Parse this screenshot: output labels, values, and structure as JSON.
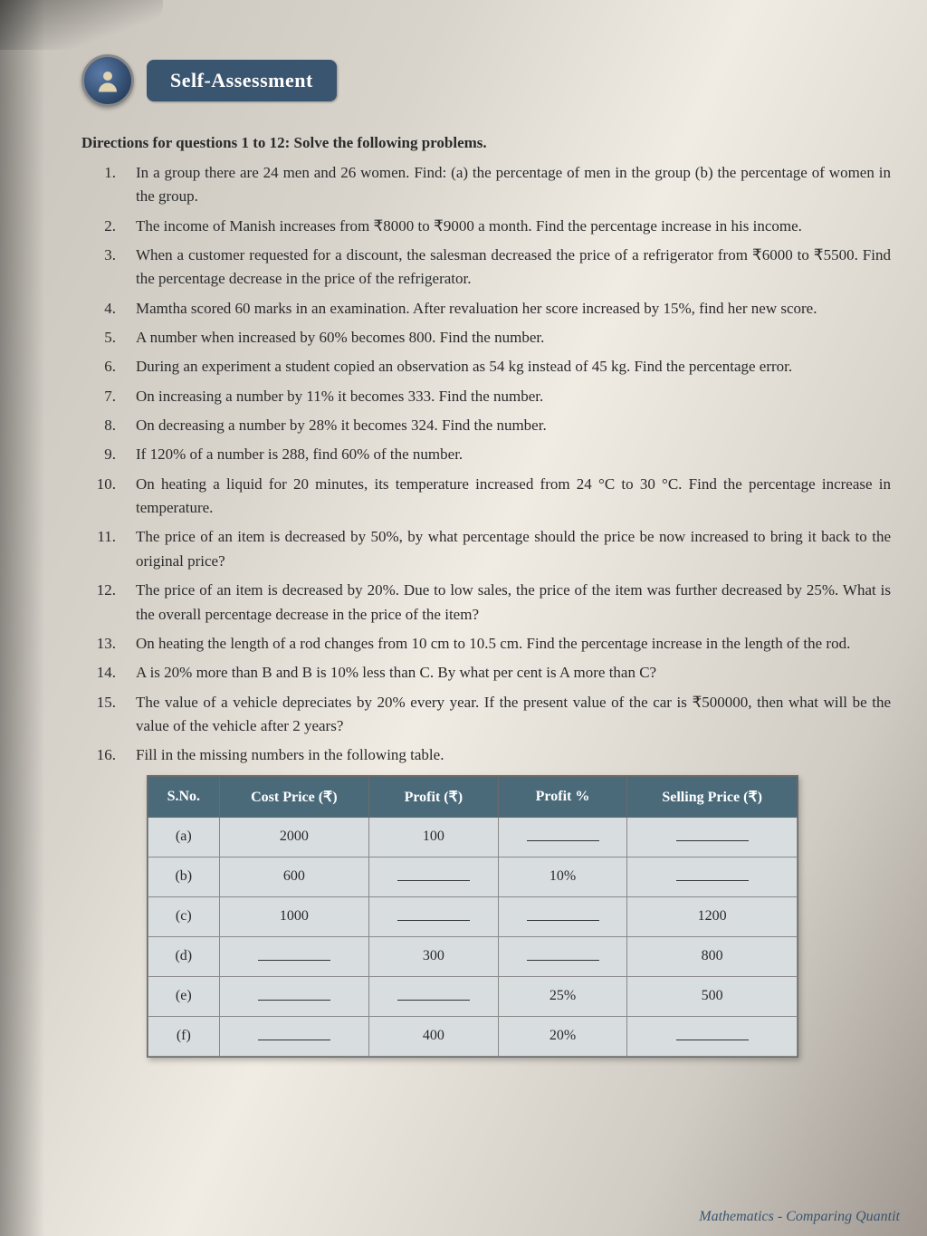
{
  "header": {
    "title": "Self-Assessment"
  },
  "directions": "Directions for questions 1 to 12: Solve the following problems.",
  "questions": [
    {
      "n": "1.",
      "t": "In a group there are 24 men and 26 women. Find: (a) the percentage of men in the group (b) the percentage of women in the group."
    },
    {
      "n": "2.",
      "t": "The income of Manish increases from ₹8000 to ₹9000 a month. Find the percentage increase in his income."
    },
    {
      "n": "3.",
      "t": "When a customer requested for a discount, the salesman decreased the price of a refrigerator from ₹6000 to ₹5500. Find the percentage decrease in the price of the refrigerator."
    },
    {
      "n": "4.",
      "t": "Mamtha scored 60 marks in an examination. After revaluation her score increased by 15%, find her new score."
    },
    {
      "n": "5.",
      "t": "A number when increased by 60% becomes 800. Find the number."
    },
    {
      "n": "6.",
      "t": "During an experiment a student copied an observation as 54 kg instead of 45 kg. Find the percentage error."
    },
    {
      "n": "7.",
      "t": "On increasing a number by 11% it becomes 333. Find the number."
    },
    {
      "n": "8.",
      "t": "On decreasing a number by 28% it becomes 324. Find the number."
    },
    {
      "n": "9.",
      "t": "If 120% of a number is 288, find 60% of the number."
    },
    {
      "n": "10.",
      "t": "On heating a liquid for 20 minutes, its temperature increased from 24 °C to 30 °C. Find the percentage increase in temperature."
    },
    {
      "n": "11.",
      "t": "The price of an item is decreased by 50%, by what percentage should the price be now increased to bring it back to the original price?"
    },
    {
      "n": "12.",
      "t": "The price of an item is decreased by 20%. Due to low sales, the price of the item was further decreased by 25%. What is the overall percentage decrease in the price of the item?"
    },
    {
      "n": "13.",
      "t": "On heating the length of a rod changes from 10 cm to 10.5 cm. Find the percentage increase in the length of the rod."
    },
    {
      "n": "14.",
      "t": "A is 20% more than B and B is 10% less than C. By what per cent is A more than C?"
    },
    {
      "n": "15.",
      "t": "The value of a vehicle depreciates by 20% every year. If the present value of the car is ₹500000, then what will be the value of the vehicle after 2 years?"
    },
    {
      "n": "16.",
      "t": "Fill in the missing numbers in the following table."
    }
  ],
  "table": {
    "headers": [
      "S.No.",
      "Cost Price (₹)",
      "Profit (₹)",
      "Profit %",
      "Selling Price (₹)"
    ],
    "header_bg": "#4a6a7a",
    "header_color": "#ffffff",
    "cell_bg": "#d8dde0",
    "rows": [
      {
        "sno": "(a)",
        "cp": "2000",
        "profit": "100",
        "pct": "",
        "sp": ""
      },
      {
        "sno": "(b)",
        "cp": "600",
        "profit": "",
        "pct": "10%",
        "sp": ""
      },
      {
        "sno": "(c)",
        "cp": "1000",
        "profit": "",
        "pct": "",
        "sp": "1200"
      },
      {
        "sno": "(d)",
        "cp": "",
        "profit": "300",
        "pct": "",
        "sp": "800"
      },
      {
        "sno": "(e)",
        "cp": "",
        "profit": "",
        "pct": "25%",
        "sp": "500"
      },
      {
        "sno": "(f)",
        "cp": "",
        "profit": "400",
        "pct": "20%",
        "sp": ""
      }
    ]
  },
  "footer": "Mathematics - Comparing Quantit"
}
